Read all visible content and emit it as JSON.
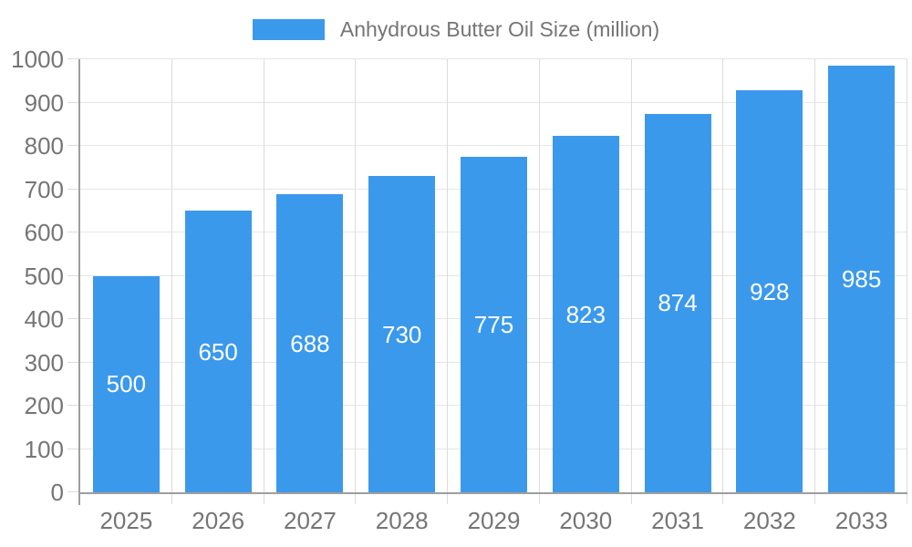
{
  "legend": {
    "label": "Anhydrous Butter Oil Size (million)"
  },
  "colors": {
    "bar": "#3B99EC",
    "bar_label": "#FFFFFF",
    "axis_text": "#757575",
    "legend_text": "#757575",
    "axis_line": "#9E9E9E",
    "grid_horizontal": "#E6E6E6",
    "grid_vertical": "#DCDCDC",
    "background": "#FFFFFF"
  },
  "chart_data": {
    "type": "bar",
    "title": "Anhydrous Butter Oil Size (million)",
    "series_name": "Anhydrous Butter Oil Size (million)",
    "categories": [
      "2025",
      "2026",
      "2027",
      "2028",
      "2029",
      "2030",
      "2031",
      "2032",
      "2033"
    ],
    "values": [
      500,
      650,
      688,
      730,
      775,
      823,
      874,
      928,
      985
    ],
    "value_labels": [
      "500",
      "650",
      "688",
      "730",
      "775",
      "823",
      "874",
      "928",
      "985"
    ],
    "value_label_position": "inside-center",
    "xlabel": "",
    "ylabel": "",
    "ylim": [
      0,
      1000
    ],
    "ytick_step": 100,
    "yticks": [
      "0",
      "100",
      "200",
      "300",
      "400",
      "500",
      "600",
      "700",
      "800",
      "900",
      "1000"
    ],
    "grid": "on",
    "legend_position": "top-center"
  }
}
